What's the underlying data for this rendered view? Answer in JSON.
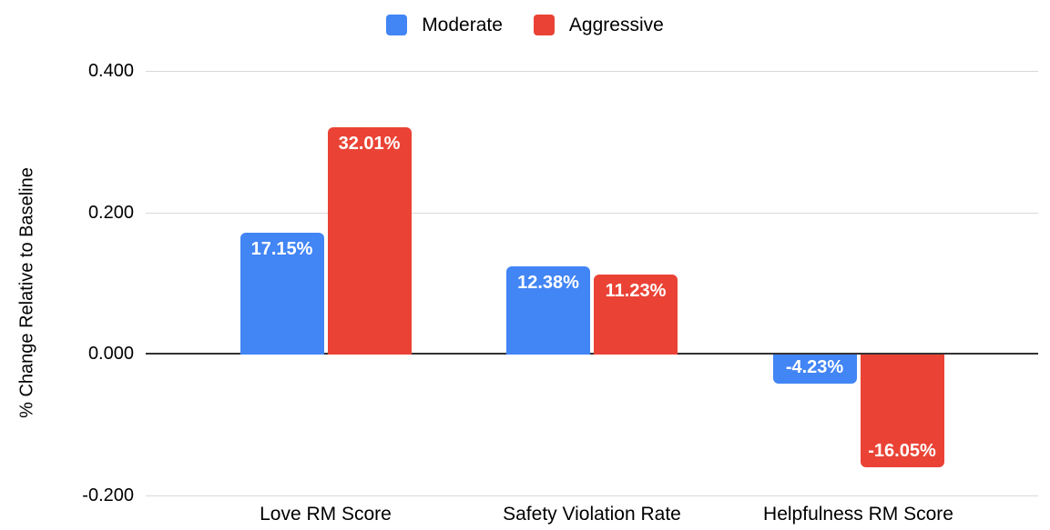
{
  "chart_data": {
    "type": "bar",
    "title": "",
    "ylabel": "% Change Relative to Baseline",
    "xlabel": "",
    "categories": [
      "Love RM Score",
      "Safety Violation Rate",
      "Helpfulness RM Score"
    ],
    "series": [
      {
        "name": "Moderate",
        "color": "#4285F4",
        "values": [
          0.1715,
          0.1238,
          -0.0423
        ],
        "labels": [
          "17.15%",
          "12.38%",
          "-4.23%"
        ]
      },
      {
        "name": "Aggressive",
        "color": "#EA4335",
        "values": [
          0.3201,
          0.1123,
          -0.1605
        ],
        "labels": [
          "32.01%",
          "11.23%",
          "-16.05%"
        ]
      }
    ],
    "ylim": [
      -0.2,
      0.4
    ],
    "yticks": [
      0.4,
      0.2,
      0.0,
      -0.2
    ],
    "ytick_labels": [
      "0.400",
      "0.200",
      "0.000",
      "-0.200"
    ],
    "grid": true,
    "legend_position": "top",
    "colors": {
      "gridline": "#d9d9d9",
      "zero_line": "#333333",
      "bar_label_text": "#ffffff",
      "axis_text": "#000000",
      "background": "#ffffff"
    }
  }
}
